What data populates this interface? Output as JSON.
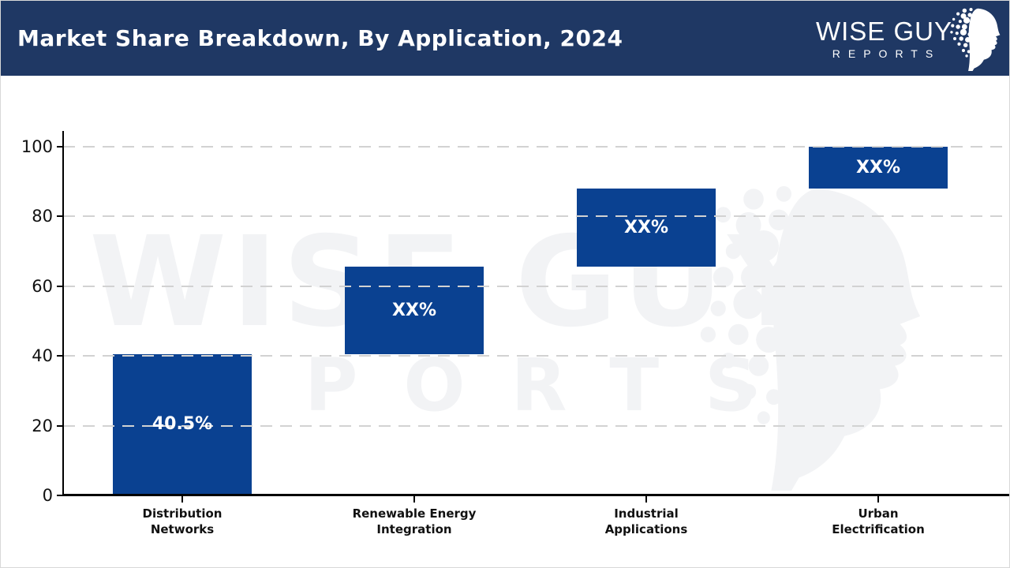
{
  "header": {
    "title": "Market Share Breakdown, By Application, 2024",
    "logo": {
      "name_line": "WISE GUY",
      "sub_line": "REPORTS"
    }
  },
  "watermark": {
    "line1": "WISE GUY",
    "line2": "PORTS"
  },
  "colors": {
    "header_bg": "#1f3864",
    "bar": "#0a4191",
    "bar_label": "#ffffff",
    "grid": "#d2d2d2",
    "axis": "#000000",
    "watermark": "#f2f3f5",
    "frame_border": "#d8d8d8"
  },
  "chart_data": {
    "type": "bar",
    "subtype": "waterfall",
    "title": "Market Share Breakdown, By Application, 2024",
    "categories": [
      "Distribution Networks",
      "Renewable Energy Integration",
      "Industrial Applications",
      "Urban Electrification"
    ],
    "segments": [
      {
        "label": "Distribution Networks",
        "lines": [
          "Distribution",
          "Networks"
        ],
        "start": 0,
        "end": 40.5,
        "value_label": "40.5%"
      },
      {
        "label": "Renewable Energy Integration",
        "lines": [
          "Renewable Energy",
          "Integration"
        ],
        "start": 40.5,
        "end": 65.5,
        "value_label": "XX%"
      },
      {
        "label": "Industrial Applications",
        "lines": [
          "Industrial",
          "Applications"
        ],
        "start": 65.5,
        "end": 88,
        "value_label": "XX%"
      },
      {
        "label": "Urban Electrification",
        "lines": [
          "Urban",
          "Electrification"
        ],
        "start": 88,
        "end": 100,
        "value_label": "XX%"
      }
    ],
    "ylim": [
      0,
      100
    ],
    "yticks": [
      0,
      20,
      40,
      60,
      80,
      100
    ],
    "grid": "horizontal-dashed",
    "legend": "none",
    "bar_color": "#0a4191",
    "value_label_color": "#ffffff"
  }
}
